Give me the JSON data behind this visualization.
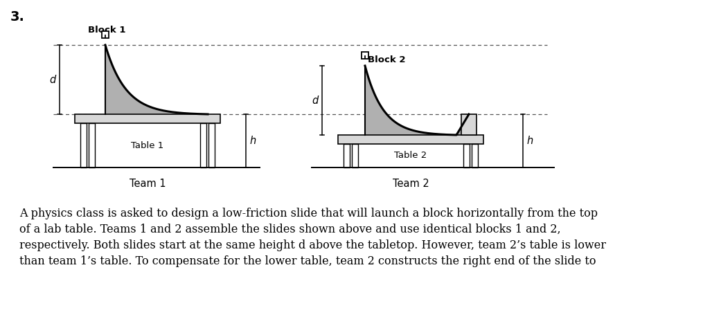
{
  "background_color": "#ffffff",
  "question_number": "3.",
  "text_lines": [
    "A physics class is asked to design a low-friction slide that will launch a block horizontally from the top",
    "of a lab table. Teams 1 and 2 assemble the slides shown above and use identical blocks 1 and 2,",
    "respectively. Both slides start at the same height d above the tabletop. However, team 2’s table is lower",
    "than team 1’s table. To compensate for the lower table, team 2 constructs the right end of the slide to"
  ],
  "team1_label": "Team 1",
  "team2_label": "Team 2",
  "block1_label": "Block 1",
  "block2_label": "Block 2",
  "table1_label": "Table 1",
  "table2_label": "Table 2",
  "d_label": "d",
  "h_label": "h",
  "text_fontsize": 11.5,
  "label_fontsize": 9.5
}
